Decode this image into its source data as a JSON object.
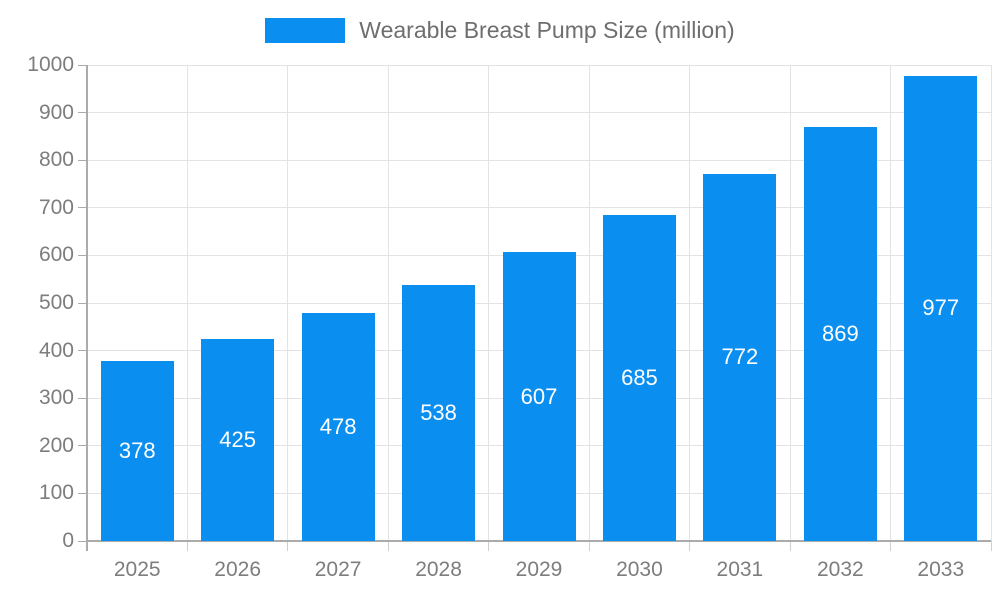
{
  "legend": {
    "label": "Wearable Breast Pump Size (million)"
  },
  "chart_data": {
    "type": "bar",
    "title": "Wearable Breast Pump Size (million)",
    "xlabel": "",
    "ylabel": "",
    "categories": [
      "2025",
      "2026",
      "2027",
      "2028",
      "2029",
      "2030",
      "2031",
      "2032",
      "2033"
    ],
    "values": [
      378,
      425,
      478,
      538,
      607,
      685,
      772,
      869,
      977
    ],
    "ylim": [
      0,
      1000
    ],
    "ytick_step": 100,
    "ytick_labels": [
      "0",
      "100",
      "200",
      "300",
      "400",
      "500",
      "600",
      "700",
      "800",
      "900",
      "1000"
    ],
    "grid": true,
    "legend_position": "top",
    "value_labels_shown": true
  },
  "colors": {
    "bar": "#0A8FF0",
    "value_label": "#ffffff",
    "grid_line": "#e3e3e3",
    "axis_line": "#ababab",
    "boundary_tick": "#cfcfcf",
    "axis_text": "#7d7d7d",
    "legend_text": "#6e6e6e"
  }
}
